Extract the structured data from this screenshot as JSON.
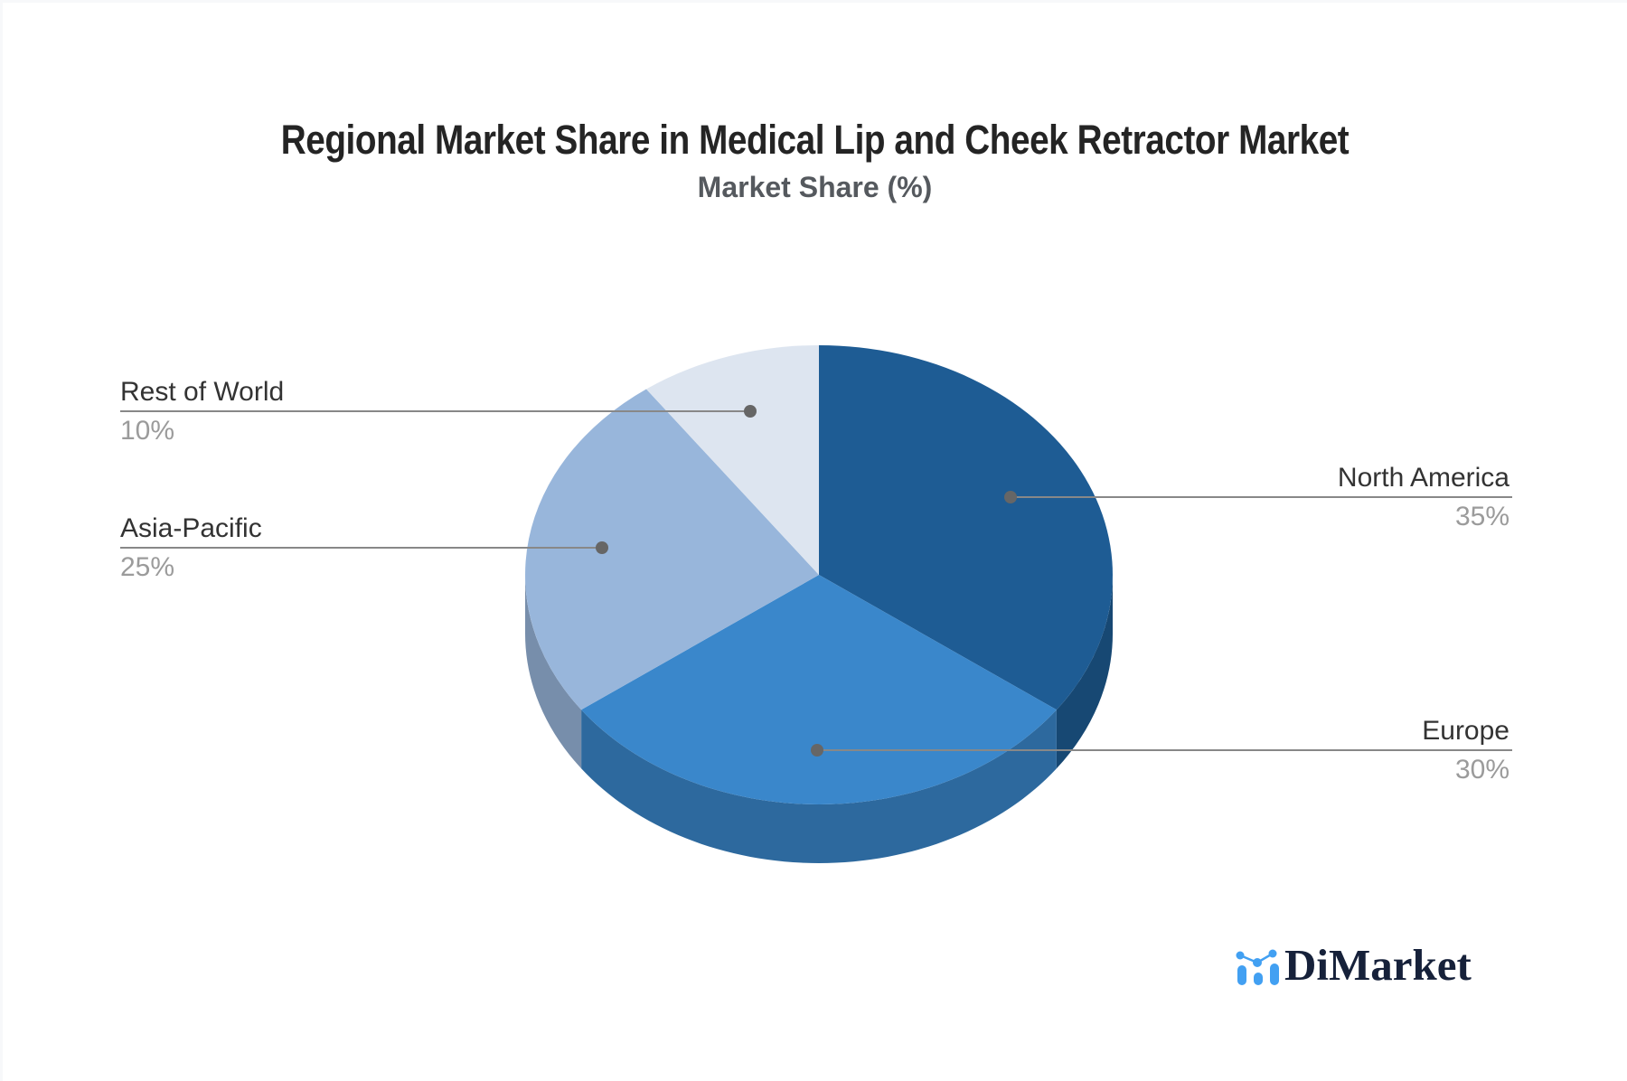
{
  "page": {
    "background": "#ffffff"
  },
  "chart_data": {
    "type": "pie",
    "style": "3d",
    "title": "Regional Market Share in Medical Lip and Cheek Retractor Market",
    "subtitle": "Market Share (%)",
    "unit": "%",
    "start_angle": "12-oclock",
    "direction": "clockwise",
    "legend_position": "callout-labels",
    "series": [
      {
        "name": "North America",
        "value": 35,
        "label": "35%",
        "color": "#1E5C94"
      },
      {
        "name": "Europe",
        "value": 30,
        "label": "30%",
        "color": "#3A87CB"
      },
      {
        "name": "Asia-Pacific",
        "value": 25,
        "label": "25%",
        "color": "#98B6DB"
      },
      {
        "name": "Rest of World",
        "value": 10,
        "label": "10%",
        "color": "#DDE5F0"
      }
    ]
  },
  "colors": {
    "label_text": "#333333",
    "percent_text": "#9b9b9b",
    "connector_line": "#888888",
    "connector_dot": "#666666",
    "title_text": "#242424",
    "subtitle_text": "#55595e",
    "logo_icon": "#42A0F2",
    "logo_text": "#16213a"
  },
  "branding": {
    "logo_text": "DiMarket"
  }
}
